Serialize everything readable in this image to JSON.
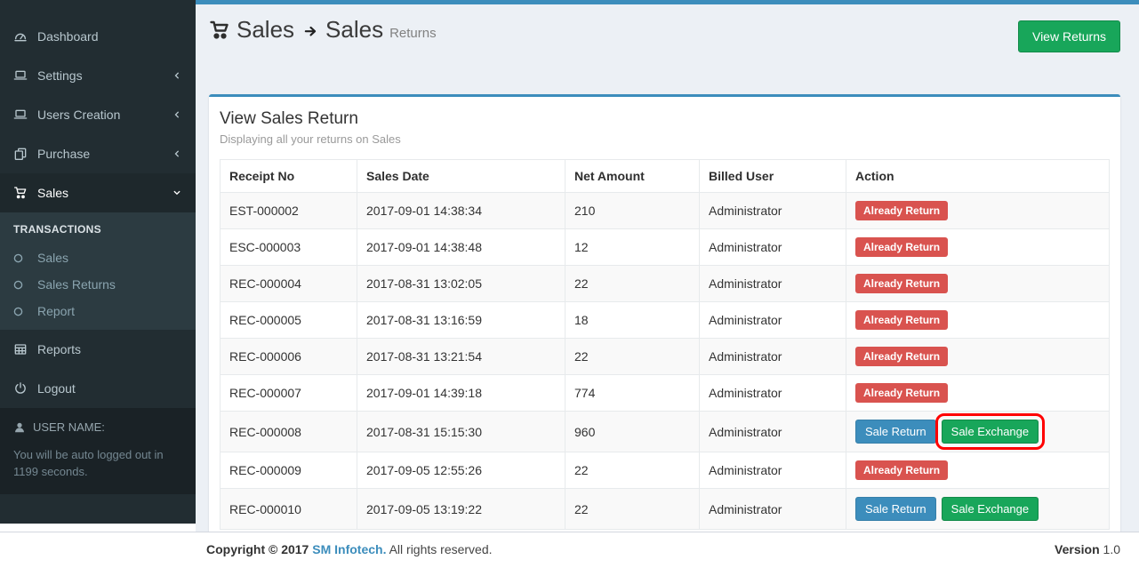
{
  "colors": {
    "accent_blue": "#3c8dbc",
    "success_green": "#18a65a",
    "danger_red": "#d9534f",
    "sidebar_bg": "#222d32",
    "sidebar_active_bg": "#1e282c",
    "submenu_bg": "#2c3b41",
    "user_panel_bg": "#1a2226",
    "content_bg": "#ecf0f5",
    "annotation_red": "#ff0000"
  },
  "sidebar": {
    "items": [
      {
        "label": "Dashboard",
        "icon": "dashboard-icon",
        "chevron": "",
        "active": false
      },
      {
        "label": "Settings",
        "icon": "laptop-icon",
        "chevron": "left",
        "active": false
      },
      {
        "label": "Users Creation",
        "icon": "laptop-icon",
        "chevron": "left",
        "active": false
      },
      {
        "label": "Purchase",
        "icon": "copy-icon",
        "chevron": "left",
        "active": false
      },
      {
        "label": "Sales",
        "icon": "cart-icon",
        "chevron": "down",
        "active": true
      }
    ],
    "submenu_header": "TRANSACTIONS",
    "submenu_items": [
      {
        "label": "Sales"
      },
      {
        "label": "Sales Returns"
      },
      {
        "label": "Report"
      }
    ],
    "items_after": [
      {
        "label": "Reports",
        "icon": "table-icon"
      },
      {
        "label": "Logout",
        "icon": "power-icon"
      }
    ],
    "user_label": "USER NAME:",
    "logout_notice": "You will be auto logged out in 1199 seconds."
  },
  "header": {
    "breadcrumb_section": "Sales",
    "breadcrumb_page": "Sales",
    "breadcrumb_sub": "Returns",
    "view_returns_label": "View Returns"
  },
  "panel": {
    "title": "View Sales Return",
    "subtitle": "Displaying all your returns on Sales"
  },
  "table": {
    "columns": [
      "Receipt No",
      "Sales Date",
      "Net Amount",
      "Billed User",
      "Action"
    ],
    "rows": [
      {
        "receipt": "EST-000002",
        "date": "2017-09-01 14:38:34",
        "amount": "210",
        "user": "Administrator",
        "actions": [
          {
            "kind": "badge",
            "label": "Already Return",
            "highlighted": false
          }
        ]
      },
      {
        "receipt": "ESC-000003",
        "date": "2017-09-01 14:38:48",
        "amount": "12",
        "user": "Administrator",
        "actions": [
          {
            "kind": "badge",
            "label": "Already Return",
            "highlighted": false
          }
        ]
      },
      {
        "receipt": "REC-000004",
        "date": "2017-08-31 13:02:05",
        "amount": "22",
        "user": "Administrator",
        "actions": [
          {
            "kind": "badge",
            "label": "Already Return",
            "highlighted": false
          }
        ]
      },
      {
        "receipt": "REC-000005",
        "date": "2017-08-31 13:16:59",
        "amount": "18",
        "user": "Administrator",
        "actions": [
          {
            "kind": "badge",
            "label": "Already Return",
            "highlighted": false
          }
        ]
      },
      {
        "receipt": "REC-000006",
        "date": "2017-08-31 13:21:54",
        "amount": "22",
        "user": "Administrator",
        "actions": [
          {
            "kind": "badge",
            "label": "Already Return",
            "highlighted": false
          }
        ]
      },
      {
        "receipt": "REC-000007",
        "date": "2017-09-01 14:39:18",
        "amount": "774",
        "user": "Administrator",
        "actions": [
          {
            "kind": "badge",
            "label": "Already Return",
            "highlighted": false
          }
        ]
      },
      {
        "receipt": "REC-000008",
        "date": "2017-08-31 15:15:30",
        "amount": "960",
        "user": "Administrator",
        "actions": [
          {
            "kind": "btn-primary",
            "label": "Sale Return",
            "highlighted": false
          },
          {
            "kind": "btn-success",
            "label": "Sale Exchange",
            "highlighted": true
          }
        ]
      },
      {
        "receipt": "REC-000009",
        "date": "2017-09-05 12:55:26",
        "amount": "22",
        "user": "Administrator",
        "actions": [
          {
            "kind": "badge",
            "label": "Already Return",
            "highlighted": false
          }
        ]
      },
      {
        "receipt": "REC-000010",
        "date": "2017-09-05 13:19:22",
        "amount": "22",
        "user": "Administrator",
        "actions": [
          {
            "kind": "btn-primary",
            "label": "Sale Return",
            "highlighted": false
          },
          {
            "kind": "btn-success",
            "label": "Sale Exchange",
            "highlighted": false
          }
        ]
      }
    ]
  },
  "footer": {
    "prefix": "Copyright © 2017 ",
    "company": "SM Infotech.",
    "suffix": " All rights reserved.",
    "version_label": "Version",
    "version_value": "1.0"
  }
}
